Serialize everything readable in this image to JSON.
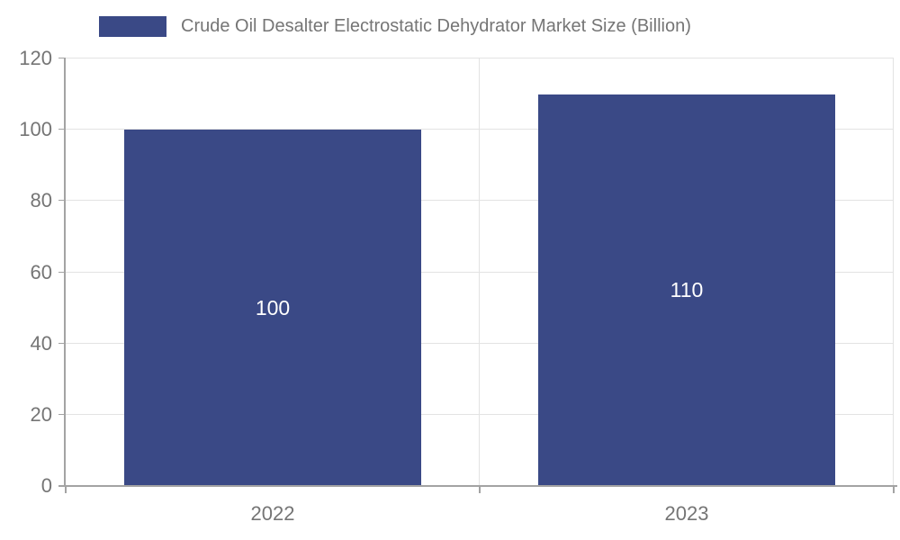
{
  "chart_data": {
    "type": "bar",
    "title": "",
    "legend_label": "Crude Oil Desalter Electrostatic Dehydrator Market Size (Billion)",
    "legend_position": "top-left",
    "categories": [
      "2022",
      "2023"
    ],
    "values": [
      100,
      110
    ],
    "data_labels": [
      "100",
      "110"
    ],
    "xlabel": "",
    "ylabel": "",
    "ylim": [
      0,
      120
    ],
    "yticks": [
      0,
      20,
      40,
      60,
      80,
      100,
      120
    ],
    "grid": true,
    "colors": {
      "bar": "#3A4986",
      "bar_label_text": "#FFFFFF",
      "axis_line": "#A3A3A3",
      "tick_mark": "#A3A3A3",
      "gridline": "#E3E3E3",
      "tick_text": "#757575",
      "legend_text": "#757575",
      "background": "#FFFFFF"
    }
  }
}
